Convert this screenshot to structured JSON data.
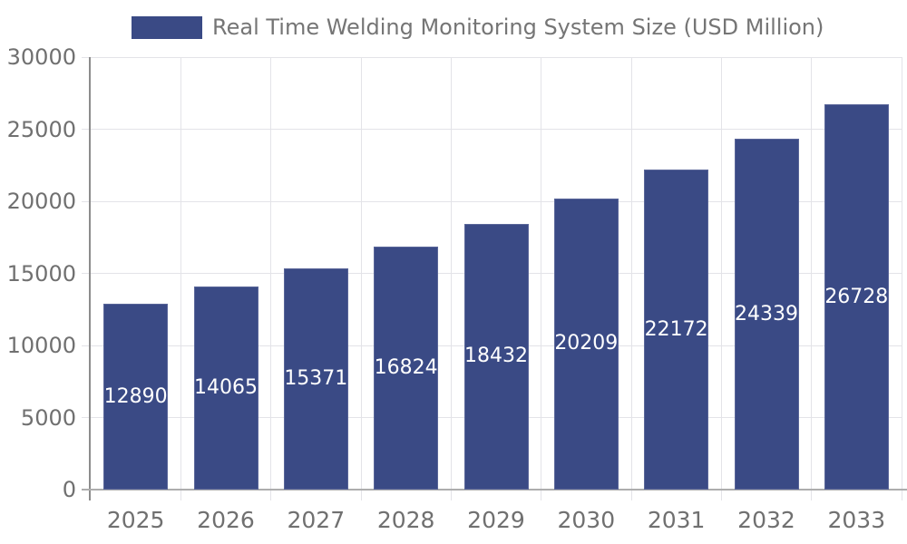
{
  "chart_data": {
    "type": "bar",
    "title": "",
    "legend": {
      "label": "Real Time Welding Monitoring System Size (USD Million)",
      "position": "top"
    },
    "categories": [
      "2025",
      "2026",
      "2027",
      "2028",
      "2029",
      "2030",
      "2031",
      "2032",
      "2033"
    ],
    "series": [
      {
        "name": "Real Time Welding Monitoring System Size (USD Million)",
        "values": [
          12890,
          14065,
          15371,
          16824,
          18432,
          20209,
          22172,
          24339,
          26728
        ]
      }
    ],
    "xlabel": "",
    "ylabel": "",
    "ylim": [
      0,
      30000
    ],
    "yticks": [
      0,
      5000,
      10000,
      15000,
      20000,
      25000,
      30000
    ],
    "grid": true,
    "value_labels": "inside-center-white"
  },
  "colors": {
    "bar": "#3A4A85",
    "bar_edge": "#5A6699",
    "bar_label": "#FFFFFF",
    "y_axis_line": "#8C8C8C",
    "x_axis_line": "#ADADAD",
    "grid_line": "#E3E3E8",
    "tick_label": "#707070",
    "legend_text": "#757575",
    "background": "#FFFFFF"
  }
}
